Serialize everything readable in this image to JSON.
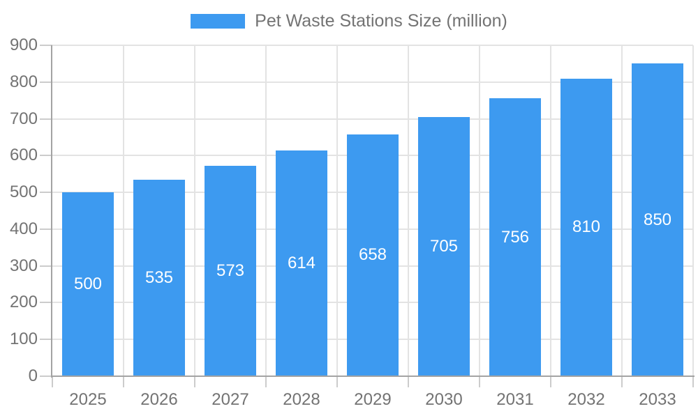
{
  "legend": {
    "label": "Pet Waste Stations Size (million)"
  },
  "colors": {
    "bar": "#3D9AF0",
    "text": "#737373",
    "gridline": "#E3E3E3",
    "axis": "#A3A3A3",
    "tick": "#CCCCCC",
    "value_label": "#FFFFFF",
    "background": "#FFFFFF"
  },
  "chart_data": {
    "type": "bar",
    "title": "Pet Waste Stations Size (million)",
    "categories": [
      "2025",
      "2026",
      "2027",
      "2028",
      "2029",
      "2030",
      "2031",
      "2032",
      "2033"
    ],
    "values": [
      500,
      535,
      573,
      614,
      658,
      705,
      756,
      810,
      850
    ],
    "xlabel": "",
    "ylabel": "",
    "ylim": [
      0,
      900
    ],
    "ytick_step": 100,
    "grid": true,
    "legend_position": "top",
    "value_labels_inside_bars": true
  }
}
